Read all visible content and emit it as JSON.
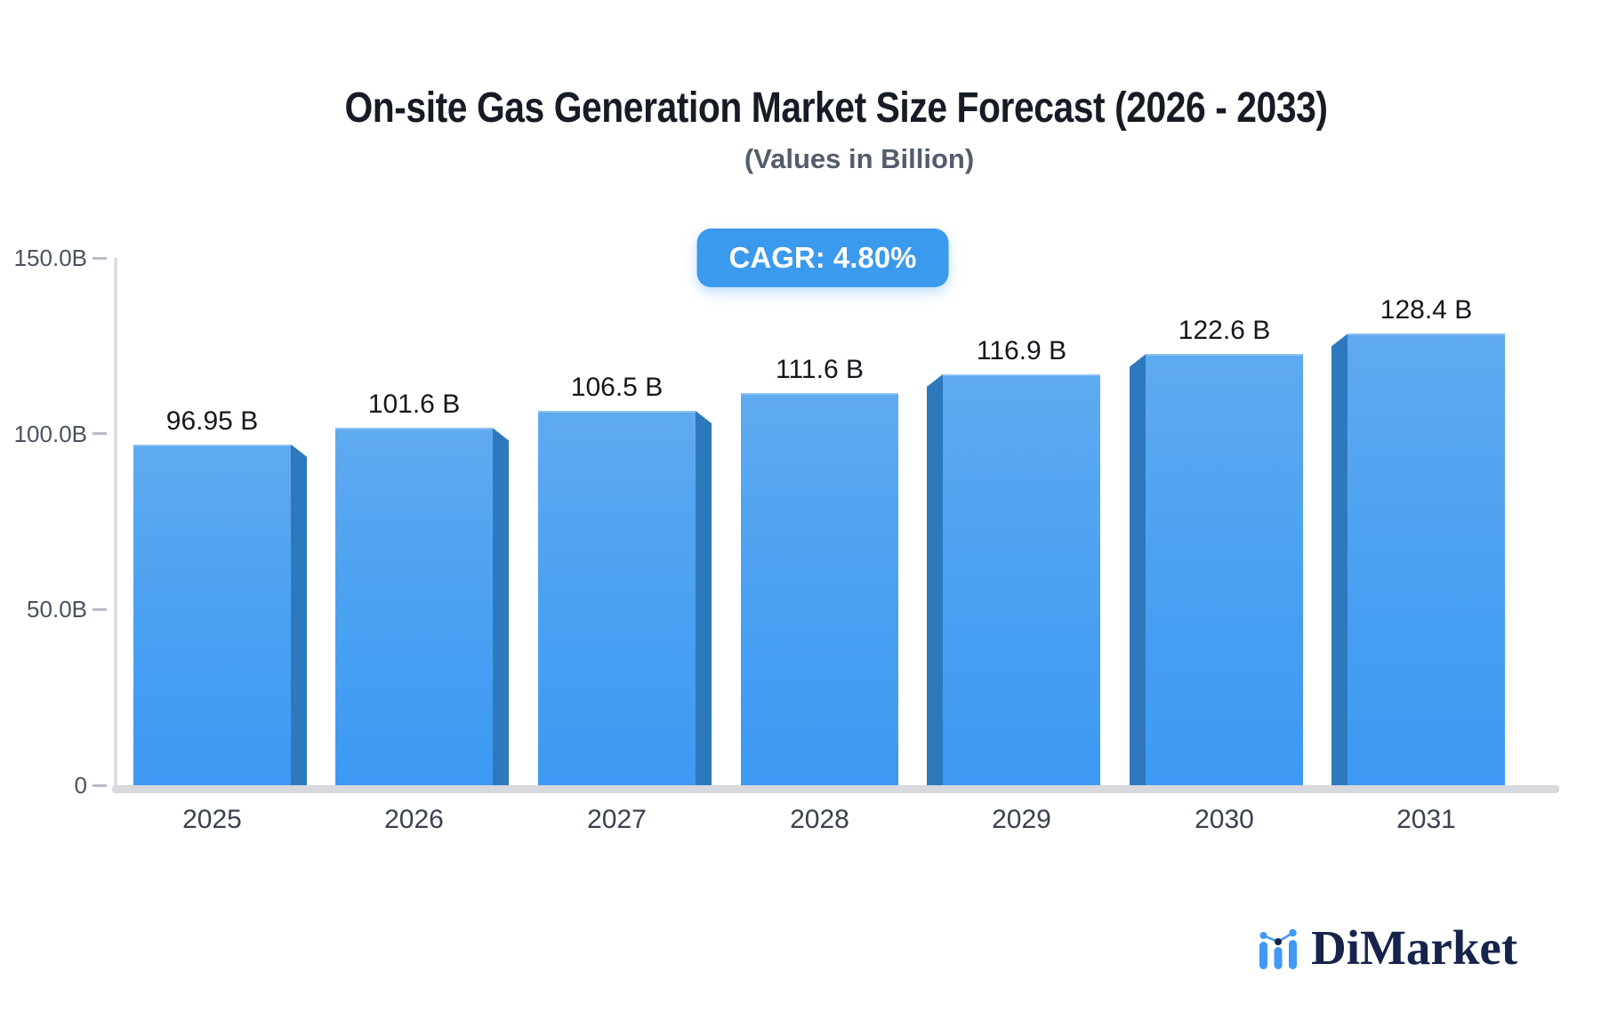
{
  "header": {
    "title": "On-site Gas Generation Market Size Forecast (2026 - 2033)",
    "subtitle": "(Values in Billion)",
    "cagr_badge": "CAGR: 4.80%"
  },
  "chart_data": {
    "type": "bar",
    "categories": [
      "2025",
      "2026",
      "2027",
      "2028",
      "2029",
      "2030",
      "2031"
    ],
    "values": [
      96.95,
      101.6,
      106.5,
      111.6,
      116.9,
      122.6,
      128.4
    ],
    "bar_labels": [
      "96.95 B",
      "101.6 B",
      "106.5 B",
      "111.6 B",
      "116.9 B",
      "122.6 B",
      "128.4 B"
    ],
    "title": "On-site Gas Generation Market Size Forecast (2026 - 2033)",
    "subtitle": "(Values in Billion)",
    "annotation": "CAGR: 4.80%",
    "xlabel": "",
    "ylabel": "",
    "ylim": [
      0,
      150
    ],
    "ytick_values": [
      150,
      100,
      50,
      0
    ],
    "ytick_labels": [
      "150.0B",
      "100.0B",
      "50.0B",
      "0"
    ],
    "grid": false,
    "legend_position": "none",
    "bar_style": "3d-extruded",
    "colors": {
      "bar_face_top": "#5FAAEF",
      "bar_face_bottom": "#3D99F3",
      "bar_side": "#2E79BD",
      "badge_background": "#3B99EE",
      "badge_text": "#FFFFFF",
      "axis_line": "#DCDEE3",
      "baseline": "#D7D9DE",
      "title_text": "#161B26",
      "subtitle_text": "#535C6B",
      "tick_label_text": "#4A5160",
      "category_label_text": "#3A4150",
      "value_label_text": "#14171D"
    }
  },
  "footer": {
    "logo_text": "DiMarket",
    "logo_icon": "bar-line-chart-icon",
    "logo_navy": "#16244B",
    "logo_blue": "#3E9AF5"
  }
}
